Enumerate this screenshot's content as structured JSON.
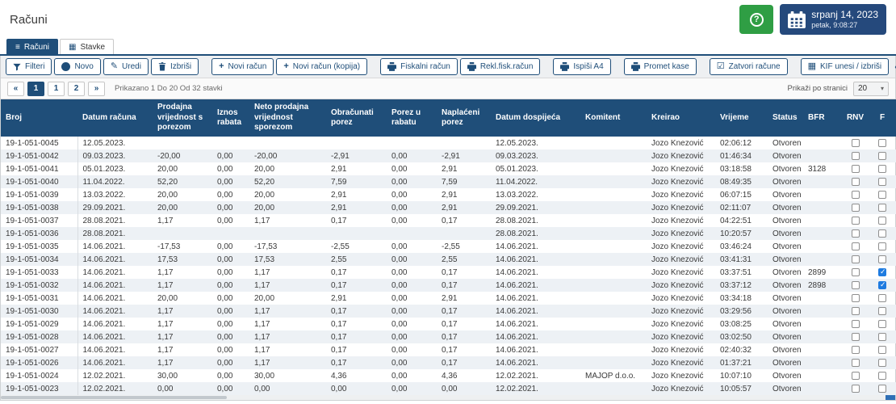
{
  "header": {
    "title": "Računi",
    "help_icon": "?",
    "date_line1": "srpanj 14, 2023",
    "date_line2": "petak, 9:08:27"
  },
  "tabs": [
    {
      "label": "Računi",
      "active": true
    },
    {
      "label": "Stavke",
      "active": false
    }
  ],
  "toolbar": {
    "filteri": "Filteri",
    "novo": "Novo",
    "uredi": "Uredi",
    "izbrisi": "Izbriši",
    "novi_racun": "Novi račun",
    "novi_racun_kopija": "Novi račun (kopija)",
    "fiskalni_racun": "Fiskalni račun",
    "rekl_fisk_racun": "Rekl.fisk.račun",
    "ispisi_a4": "Ispiši A4",
    "promet_kase": "Promet kase",
    "zatvori_racune": "Zatvori račune",
    "kif": "KIF unesi / izbriši"
  },
  "pagination": {
    "first": "«",
    "last": "»",
    "pages": [
      {
        "label": "1",
        "active": true
      },
      {
        "label": "1",
        "active": false
      },
      {
        "label": "2",
        "active": false
      }
    ],
    "info": "Prikazano 1 Do 20 Od 32 stavki",
    "per_page_label": "Prikaži po stranici",
    "per_page_value": "20"
  },
  "icons": {
    "list": "≡",
    "grid": "▦",
    "plus": "+",
    "pencil": "✎",
    "check_square": "☑",
    "chevron_left": "‹",
    "chevron_right": "›",
    "select_caret": "▾"
  },
  "colors": {
    "navy": "#1F4E79",
    "green": "#2F9E44",
    "checked_blue": "#1E7BE0",
    "alt_row": "#EDF1F5"
  },
  "table": {
    "columns": [
      "Broj",
      "Datum računa",
      "Prodajna vrijednost s porezom",
      "Iznos rabata",
      "Neto prodajna vrijednost sporezom",
      "Obračunati porez",
      "Porez u rabatu",
      "Naplaćeni porez",
      "Datum dospijeća",
      "Komitent",
      "Kreirao",
      "Vrijeme",
      "Status",
      "BFR",
      "RNV",
      "F"
    ],
    "rows": [
      {
        "broj": "19-1-051-0045",
        "datum": "12.05.2023.",
        "prodajna": "",
        "rabata": "",
        "neto": "",
        "porez": "",
        "porez_rabat": "",
        "naplaceni": "",
        "dospijece": "12.05.2023.",
        "komitent": "",
        "kreirao": "Jozo Knezović",
        "vrijeme": "02:06:12",
        "status": "Otvoren",
        "bfr": "",
        "rnv": false,
        "f": false
      },
      {
        "broj": "19-1-051-0042",
        "datum": "09.03.2023.",
        "prodajna": "-20,00",
        "rabata": "0,00",
        "neto": "-20,00",
        "porez": "-2,91",
        "porez_rabat": "0,00",
        "naplaceni": "-2,91",
        "dospijece": "09.03.2023.",
        "komitent": "",
        "kreirao": "Jozo Knezović",
        "vrijeme": "01:46:34",
        "status": "Otvoren",
        "bfr": "",
        "rnv": false,
        "f": false
      },
      {
        "broj": "19-1-051-0041",
        "datum": "05.01.2023.",
        "prodajna": "20,00",
        "rabata": "0,00",
        "neto": "20,00",
        "porez": "2,91",
        "porez_rabat": "0,00",
        "naplaceni": "2,91",
        "dospijece": "05.01.2023.",
        "komitent": "",
        "kreirao": "Jozo Knezović",
        "vrijeme": "03:18:58",
        "status": "Otvoren",
        "bfr": "3128",
        "rnv": false,
        "f": false
      },
      {
        "broj": "19-1-051-0040",
        "datum": "11.04.2022.",
        "prodajna": "52,20",
        "rabata": "0,00",
        "neto": "52,20",
        "porez": "7,59",
        "porez_rabat": "0,00",
        "naplaceni": "7,59",
        "dospijece": "11.04.2022.",
        "komitent": "",
        "kreirao": "Jozo Knezović",
        "vrijeme": "08:49:35",
        "status": "Otvoren",
        "bfr": "",
        "rnv": false,
        "f": false
      },
      {
        "broj": "19-1-051-0039",
        "datum": "13.03.2022.",
        "prodajna": "20,00",
        "rabata": "0,00",
        "neto": "20,00",
        "porez": "2,91",
        "porez_rabat": "0,00",
        "naplaceni": "2,91",
        "dospijece": "13.03.2022.",
        "komitent": "",
        "kreirao": "Jozo Knezović",
        "vrijeme": "06:07:15",
        "status": "Otvoren",
        "bfr": "",
        "rnv": false,
        "f": false
      },
      {
        "broj": "19-1-051-0038",
        "datum": "29.09.2021.",
        "prodajna": "20,00",
        "rabata": "0,00",
        "neto": "20,00",
        "porez": "2,91",
        "porez_rabat": "0,00",
        "naplaceni": "2,91",
        "dospijece": "29.09.2021.",
        "komitent": "",
        "kreirao": "Jozo Knezović",
        "vrijeme": "02:11:07",
        "status": "Otvoren",
        "bfr": "",
        "rnv": false,
        "f": false
      },
      {
        "broj": "19-1-051-0037",
        "datum": "28.08.2021.",
        "prodajna": "1,17",
        "rabata": "0,00",
        "neto": "1,17",
        "porez": "0,17",
        "porez_rabat": "0,00",
        "naplaceni": "0,17",
        "dospijece": "28.08.2021.",
        "komitent": "",
        "kreirao": "Jozo Knezović",
        "vrijeme": "04:22:51",
        "status": "Otvoren",
        "bfr": "",
        "rnv": false,
        "f": false
      },
      {
        "broj": "19-1-051-0036",
        "datum": "28.08.2021.",
        "prodajna": "",
        "rabata": "",
        "neto": "",
        "porez": "",
        "porez_rabat": "",
        "naplaceni": "",
        "dospijece": "28.08.2021.",
        "komitent": "",
        "kreirao": "Jozo Knezović",
        "vrijeme": "10:20:57",
        "status": "Otvoren",
        "bfr": "",
        "rnv": false,
        "f": false
      },
      {
        "broj": "19-1-051-0035",
        "datum": "14.06.2021.",
        "prodajna": "-17,53",
        "rabata": "0,00",
        "neto": "-17,53",
        "porez": "-2,55",
        "porez_rabat": "0,00",
        "naplaceni": "-2,55",
        "dospijece": "14.06.2021.",
        "komitent": "",
        "kreirao": "Jozo Knezović",
        "vrijeme": "03:46:24",
        "status": "Otvoren",
        "bfr": "",
        "rnv": false,
        "f": false
      },
      {
        "broj": "19-1-051-0034",
        "datum": "14.06.2021.",
        "prodajna": "17,53",
        "rabata": "0,00",
        "neto": "17,53",
        "porez": "2,55",
        "porez_rabat": "0,00",
        "naplaceni": "2,55",
        "dospijece": "14.06.2021.",
        "komitent": "",
        "kreirao": "Jozo Knezović",
        "vrijeme": "03:41:31",
        "status": "Otvoren",
        "bfr": "",
        "rnv": false,
        "f": false
      },
      {
        "broj": "19-1-051-0033",
        "datum": "14.06.2021.",
        "prodajna": "1,17",
        "rabata": "0,00",
        "neto": "1,17",
        "porez": "0,17",
        "porez_rabat": "0,00",
        "naplaceni": "0,17",
        "dospijece": "14.06.2021.",
        "komitent": "",
        "kreirao": "Jozo Knezović",
        "vrijeme": "03:37:51",
        "status": "Otvoren",
        "bfr": "2899",
        "rnv": false,
        "f": true
      },
      {
        "broj": "19-1-051-0032",
        "datum": "14.06.2021.",
        "prodajna": "1,17",
        "rabata": "0,00",
        "neto": "1,17",
        "porez": "0,17",
        "porez_rabat": "0,00",
        "naplaceni": "0,17",
        "dospijece": "14.06.2021.",
        "komitent": "",
        "kreirao": "Jozo Knezović",
        "vrijeme": "03:37:12",
        "status": "Otvoren",
        "bfr": "2898",
        "rnv": false,
        "f": true
      },
      {
        "broj": "19-1-051-0031",
        "datum": "14.06.2021.",
        "prodajna": "20,00",
        "rabata": "0,00",
        "neto": "20,00",
        "porez": "2,91",
        "porez_rabat": "0,00",
        "naplaceni": "2,91",
        "dospijece": "14.06.2021.",
        "komitent": "",
        "kreirao": "Jozo Knezović",
        "vrijeme": "03:34:18",
        "status": "Otvoren",
        "bfr": "",
        "rnv": false,
        "f": false
      },
      {
        "broj": "19-1-051-0030",
        "datum": "14.06.2021.",
        "prodajna": "1,17",
        "rabata": "0,00",
        "neto": "1,17",
        "porez": "0,17",
        "porez_rabat": "0,00",
        "naplaceni": "0,17",
        "dospijece": "14.06.2021.",
        "komitent": "",
        "kreirao": "Jozo Knezović",
        "vrijeme": "03:29:56",
        "status": "Otvoren",
        "bfr": "",
        "rnv": false,
        "f": false
      },
      {
        "broj": "19-1-051-0029",
        "datum": "14.06.2021.",
        "prodajna": "1,17",
        "rabata": "0,00",
        "neto": "1,17",
        "porez": "0,17",
        "porez_rabat": "0,00",
        "naplaceni": "0,17",
        "dospijece": "14.06.2021.",
        "komitent": "",
        "kreirao": "Jozo Knezović",
        "vrijeme": "03:08:25",
        "status": "Otvoren",
        "bfr": "",
        "rnv": false,
        "f": false
      },
      {
        "broj": "19-1-051-0028",
        "datum": "14.06.2021.",
        "prodajna": "1,17",
        "rabata": "0,00",
        "neto": "1,17",
        "porez": "0,17",
        "porez_rabat": "0,00",
        "naplaceni": "0,17",
        "dospijece": "14.06.2021.",
        "komitent": "",
        "kreirao": "Jozo Knezović",
        "vrijeme": "03:02:50",
        "status": "Otvoren",
        "bfr": "",
        "rnv": false,
        "f": false
      },
      {
        "broj": "19-1-051-0027",
        "datum": "14.06.2021.",
        "prodajna": "1,17",
        "rabata": "0,00",
        "neto": "1,17",
        "porez": "0,17",
        "porez_rabat": "0,00",
        "naplaceni": "0,17",
        "dospijece": "14.06.2021.",
        "komitent": "",
        "kreirao": "Jozo Knezović",
        "vrijeme": "02:40:32",
        "status": "Otvoren",
        "bfr": "",
        "rnv": false,
        "f": false
      },
      {
        "broj": "19-1-051-0026",
        "datum": "14.06.2021.",
        "prodajna": "1,17",
        "rabata": "0,00",
        "neto": "1,17",
        "porez": "0,17",
        "porez_rabat": "0,00",
        "naplaceni": "0,17",
        "dospijece": "14.06.2021.",
        "komitent": "",
        "kreirao": "Jozo Knezović",
        "vrijeme": "01:37:21",
        "status": "Otvoren",
        "bfr": "",
        "rnv": false,
        "f": false
      },
      {
        "broj": "19-1-051-0024",
        "datum": "12.02.2021.",
        "prodajna": "30,00",
        "rabata": "0,00",
        "neto": "30,00",
        "porez": "4,36",
        "porez_rabat": "0,00",
        "naplaceni": "4,36",
        "dospijece": "12.02.2021.",
        "komitent": "MAJOP d.o.o.",
        "kreirao": "Jozo Knezović",
        "vrijeme": "10:07:10",
        "status": "Otvoren",
        "bfr": "",
        "rnv": false,
        "f": false
      },
      {
        "broj": "19-1-051-0023",
        "datum": "12.02.2021.",
        "prodajna": "0,00",
        "rabata": "0,00",
        "neto": "0,00",
        "porez": "0,00",
        "porez_rabat": "0,00",
        "naplaceni": "0,00",
        "dospijece": "12.02.2021.",
        "komitent": "",
        "kreirao": "Jozo Knezović",
        "vrijeme": "10:05:57",
        "status": "Otvoren",
        "bfr": "",
        "rnv": false,
        "f": false
      }
    ]
  }
}
